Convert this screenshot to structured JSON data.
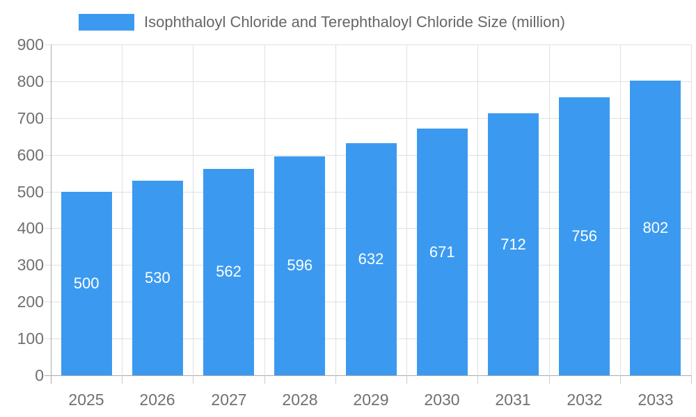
{
  "chart_data": {
    "type": "bar",
    "title": "Isophthaloyl Chloride and Terephthaloyl Chloride Size (million)",
    "categories": [
      "2025",
      "2026",
      "2027",
      "2028",
      "2029",
      "2030",
      "2031",
      "2032",
      "2033"
    ],
    "series": [
      {
        "name": "Isophthaloyl Chloride and Terephthaloyl Chloride Size (million)",
        "values": [
          500,
          530,
          562,
          596,
          632,
          671,
          712,
          756,
          802
        ]
      }
    ],
    "xlabel": "",
    "ylabel": "",
    "ylim": [
      0,
      900
    ],
    "ytick_step": 100,
    "ytick_labels": [
      "0",
      "100",
      "200",
      "300",
      "400",
      "500",
      "600",
      "700",
      "800",
      "900"
    ],
    "grid": true,
    "legend_position": "top",
    "colors": {
      "bar": "#3b9af0",
      "bar_value_label": "#ffffff",
      "axis_text": "#707070",
      "legend_text": "#666666",
      "gridline": "#e0e0e0",
      "axis_line": "#aaaaaa",
      "x_tick": "#cccccc",
      "background": "#ffffff"
    }
  }
}
